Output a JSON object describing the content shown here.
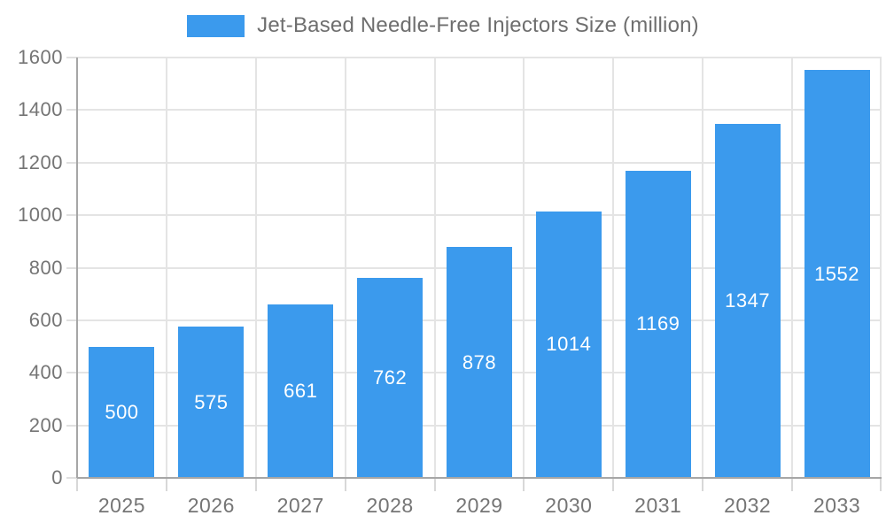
{
  "legend": {
    "label": "Jet-Based Needle-Free Injectors Size (million)",
    "swatch_color": "#3B9AED"
  },
  "colors": {
    "bar": "#3B9AED",
    "gridline": "#E4E4E4",
    "axis_line": "#A6A6A6",
    "tick_label": "#757575",
    "legend_text": "#6E6E6E",
    "value_label": "#FFFFFF",
    "background": "#FFFFFF"
  },
  "chart_data": {
    "type": "bar",
    "title": "Jet-Based Needle-Free Injectors Size (million)",
    "series_name": "Jet-Based Needle-Free Injectors Size (million)",
    "categories": [
      "2025",
      "2026",
      "2027",
      "2028",
      "2029",
      "2030",
      "2031",
      "2032",
      "2033"
    ],
    "values": [
      500,
      575,
      661,
      762,
      878,
      1014,
      1169,
      1347,
      1552
    ],
    "yticks": [
      0,
      200,
      400,
      600,
      800,
      1000,
      1200,
      1400,
      1600
    ],
    "ylim": [
      0,
      1600
    ],
    "xlabel": "",
    "ylabel": "",
    "grid": true,
    "legend_position": "top-center",
    "value_labels": "inside-center-white"
  }
}
